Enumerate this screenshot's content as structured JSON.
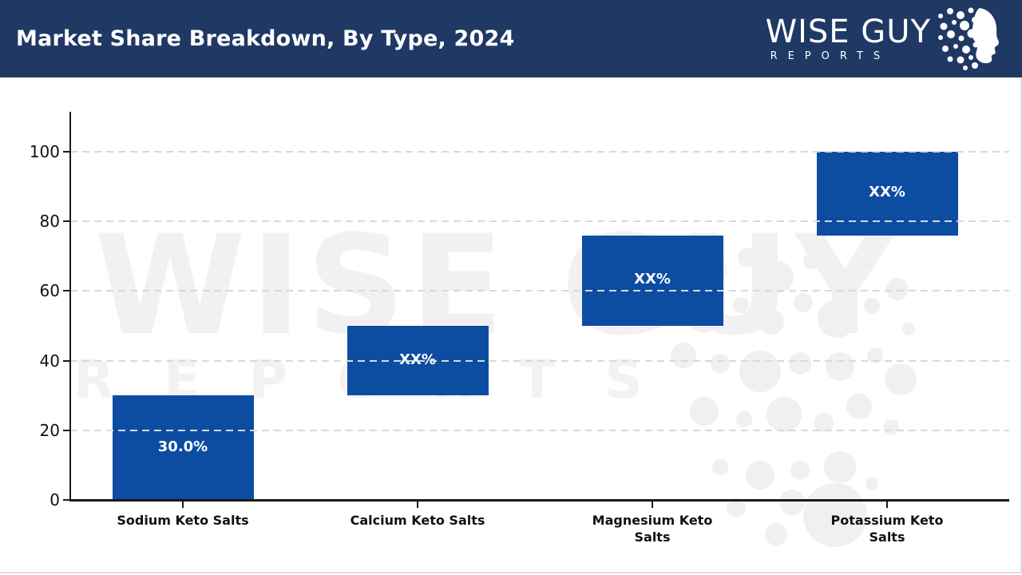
{
  "header": {
    "title": "Market Share Breakdown, By Type, 2024",
    "logo": {
      "line1": "WISE GUY",
      "line2": "REPORTS"
    }
  },
  "watermark": {
    "line1": "WISE GUY",
    "line2": "REPORTS"
  },
  "colors": {
    "header_bg": "#203864",
    "bar": "#0c4da2",
    "grid": "#d9d9d9",
    "axis": "#1a1a1a",
    "bar_label_text": "#ffffff",
    "category_text": "#111111",
    "watermark": "#f1f1f4"
  },
  "chart_data": {
    "type": "bar",
    "subtype": "waterfall-floating-segments",
    "title": "Market Share Breakdown, By Type, 2024",
    "categories": [
      "Sodium Keto Salts",
      "Calcium Keto Salts",
      "Magnesium Keto Salts",
      "Potassium Keto Salts"
    ],
    "segments": [
      {
        "category": "Sodium Keto Salts",
        "start": 0,
        "end": 30,
        "label": "30.0%"
      },
      {
        "category": "Calcium Keto Salts",
        "start": 30,
        "end": 50,
        "label": "XX%"
      },
      {
        "category": "Magnesium Keto Salts",
        "start": 50,
        "end": 76,
        "label": "XX%"
      },
      {
        "category": "Potassium Keto Salts",
        "start": 76,
        "end": 100,
        "label": "XX%"
      }
    ],
    "ylim": [
      0,
      100
    ],
    "yticks": [
      0,
      20,
      40,
      60,
      80,
      100
    ],
    "grid": "horizontal-dashed",
    "legend": "none",
    "xlabel": "",
    "ylabel": ""
  }
}
